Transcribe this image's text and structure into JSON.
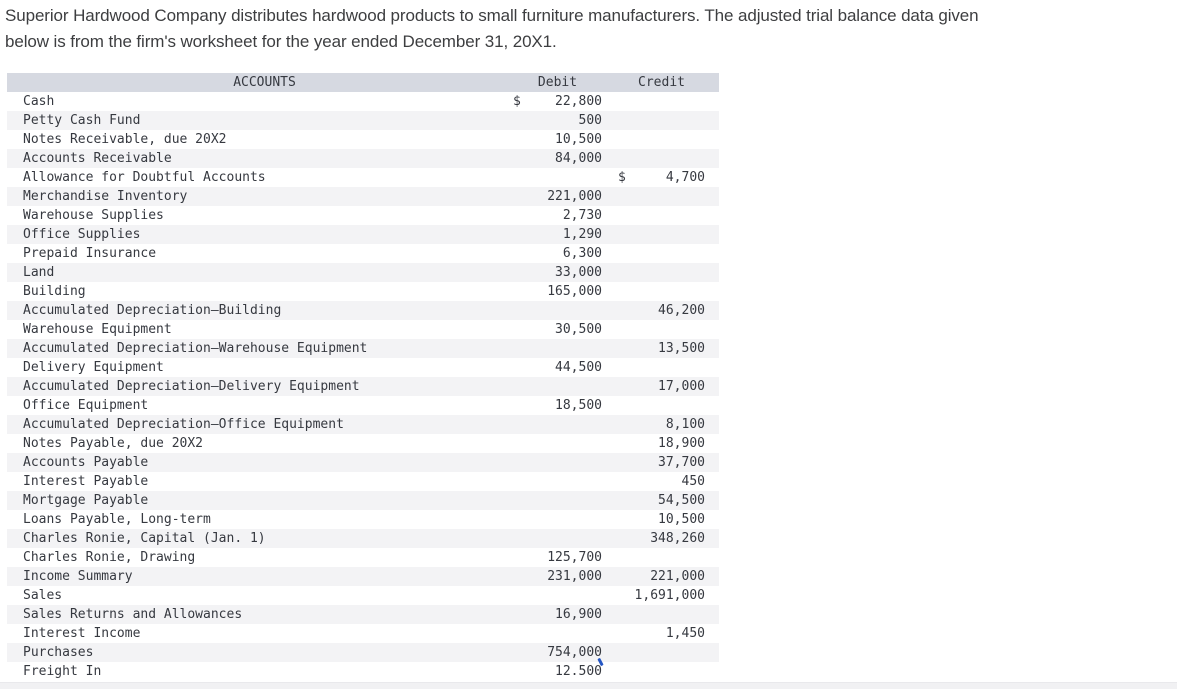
{
  "intro": {
    "line1": "Superior Hardwood Company distributes hardwood products to small furniture manufacturers. The adjusted trial balance data given",
    "line2": "below is from the firm's worksheet for the year ended December 31, 20X1."
  },
  "table": {
    "headers": {
      "accounts": "ACCOUNTS",
      "debit": "Debit",
      "credit": "Credit"
    },
    "currency_symbol": "$",
    "rows": [
      {
        "account": "Cash",
        "debit": "22,800",
        "credit": "",
        "debit_dollar": true
      },
      {
        "account": "Petty Cash Fund",
        "debit": "500",
        "credit": ""
      },
      {
        "account": "Notes Receivable, due 20X2",
        "debit": "10,500",
        "credit": ""
      },
      {
        "account": "Accounts Receivable",
        "debit": "84,000",
        "credit": ""
      },
      {
        "account": "Allowance for Doubtful Accounts",
        "debit": "",
        "credit": "4,700",
        "credit_dollar": true
      },
      {
        "account": "Merchandise Inventory",
        "debit": "221,000",
        "credit": ""
      },
      {
        "account": "Warehouse Supplies",
        "debit": "2,730",
        "credit": ""
      },
      {
        "account": "Office Supplies",
        "debit": "1,290",
        "credit": ""
      },
      {
        "account": "Prepaid Insurance",
        "debit": "6,300",
        "credit": ""
      },
      {
        "account": "Land",
        "debit": "33,000",
        "credit": ""
      },
      {
        "account": "Building",
        "debit": "165,000",
        "credit": ""
      },
      {
        "account": "Accumulated Depreciation—Building",
        "debit": "",
        "credit": "46,200"
      },
      {
        "account": "Warehouse Equipment",
        "debit": "30,500",
        "credit": ""
      },
      {
        "account": "Accumulated Depreciation—Warehouse Equipment",
        "debit": "",
        "credit": "13,500"
      },
      {
        "account": "Delivery Equipment",
        "debit": "44,500",
        "credit": ""
      },
      {
        "account": "Accumulated Depreciation—Delivery Equipment",
        "debit": "",
        "credit": "17,000"
      },
      {
        "account": "Office Equipment",
        "debit": "18,500",
        "credit": ""
      },
      {
        "account": "Accumulated Depreciation—Office Equipment",
        "debit": "",
        "credit": "8,100"
      },
      {
        "account": "Notes Payable, due 20X2",
        "debit": "",
        "credit": "18,900"
      },
      {
        "account": "Accounts Payable",
        "debit": "",
        "credit": "37,700"
      },
      {
        "account": "Interest Payable",
        "debit": "",
        "credit": "450"
      },
      {
        "account": "Mortgage Payable",
        "debit": "",
        "credit": "54,500"
      },
      {
        "account": "Loans Payable, Long-term",
        "debit": "",
        "credit": "10,500"
      },
      {
        "account": "Charles Ronie, Capital (Jan. 1)",
        "debit": "",
        "credit": "348,260"
      },
      {
        "account": "Charles Ronie, Drawing",
        "debit": "125,700",
        "credit": ""
      },
      {
        "account": "Income Summary",
        "debit": "231,000",
        "credit": "221,000"
      },
      {
        "account": "Sales",
        "debit": "",
        "credit": "1,691,000"
      },
      {
        "account": "Sales Returns and Allowances",
        "debit": "16,900",
        "credit": ""
      },
      {
        "account": "Interest Income",
        "debit": "",
        "credit": "1,450"
      },
      {
        "account": "Purchases",
        "debit": "754,000",
        "credit": ""
      },
      {
        "account": "Freight In",
        "debit": "12.500",
        "credit": ""
      }
    ]
  },
  "colors": {
    "header_bg": "#d6d9e1",
    "stripe": "#f3f3f5",
    "table_text": "#363940",
    "intro_text": "#3d3e40",
    "bottom_bar": "#f1f1f3",
    "artifact_blue": "#2456c4"
  }
}
